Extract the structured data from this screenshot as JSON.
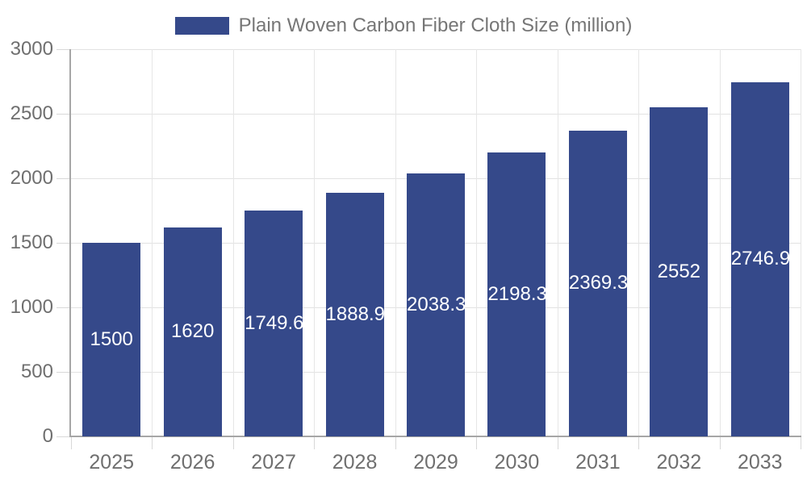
{
  "legend": {
    "label": "Plain Woven Carbon Fiber Cloth Size (million)"
  },
  "chart_data": {
    "type": "bar",
    "title": "Plain Woven Carbon Fiber Cloth Size (million)",
    "categories": [
      "2025",
      "2026",
      "2027",
      "2028",
      "2029",
      "2030",
      "2031",
      "2032",
      "2033"
    ],
    "series": [
      {
        "name": "Plain Woven Carbon Fiber Cloth Size (million)",
        "values": [
          1500,
          1620,
          1749.6,
          1888.9,
          2038.3,
          2198.3,
          2369.3,
          2552,
          2746.9
        ],
        "value_labels": [
          "1500",
          "1620",
          "1749.6",
          "1888.9",
          "2038.3",
          "2198.3",
          "2369.3",
          "2552",
          "2746.9"
        ]
      }
    ],
    "xlabel": "",
    "ylabel": "",
    "ylim": [
      0,
      3000
    ],
    "y_ticks": [
      0,
      500,
      1000,
      1500,
      2000,
      2500,
      3000
    ],
    "grid": true,
    "legend_position": "top-center",
    "colors": {
      "bar": "#35498a",
      "value_text": "#ffffff",
      "axis_text": "#6f6f6f",
      "legend_text": "#767676",
      "grid_h": "#e2e2e2",
      "grid_v": "#e6e6e6",
      "axis_line": "#a6a6a6",
      "tick": "#d8d8d8",
      "background": "#ffffff"
    }
  }
}
